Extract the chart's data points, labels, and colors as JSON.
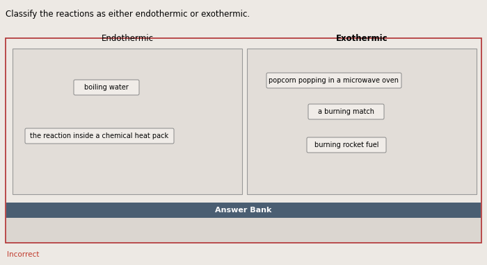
{
  "title": "Classify the reactions as either endothermic or exothermic.",
  "title_fontsize": 8.5,
  "endothermic_label": "Endothermic",
  "exothermic_label": "Exothermic",
  "endothermic_items": [
    "boiling water",
    "the reaction inside a chemical heat pack"
  ],
  "exothermic_items": [
    "popcorn popping in a microwave oven",
    "a burning match",
    "burning rocket fuel"
  ],
  "answer_bank_label": "Answer Bank",
  "incorrect_label": "Incorrect",
  "bg_color": "#ede9e4",
  "outer_border_color": "#b03030",
  "inner_bg_color": "#e2ddd8",
  "inner_border_color": "#999999",
  "item_bg_color": "#f0ece8",
  "item_border_color": "#888888",
  "answer_bank_bg": "#4a5e72",
  "answer_bank_text_color": "#ffffff",
  "answer_bank_empty_bg": "#dbd6d0",
  "incorrect_color": "#c0392b",
  "exothermic_fontweight": "bold"
}
